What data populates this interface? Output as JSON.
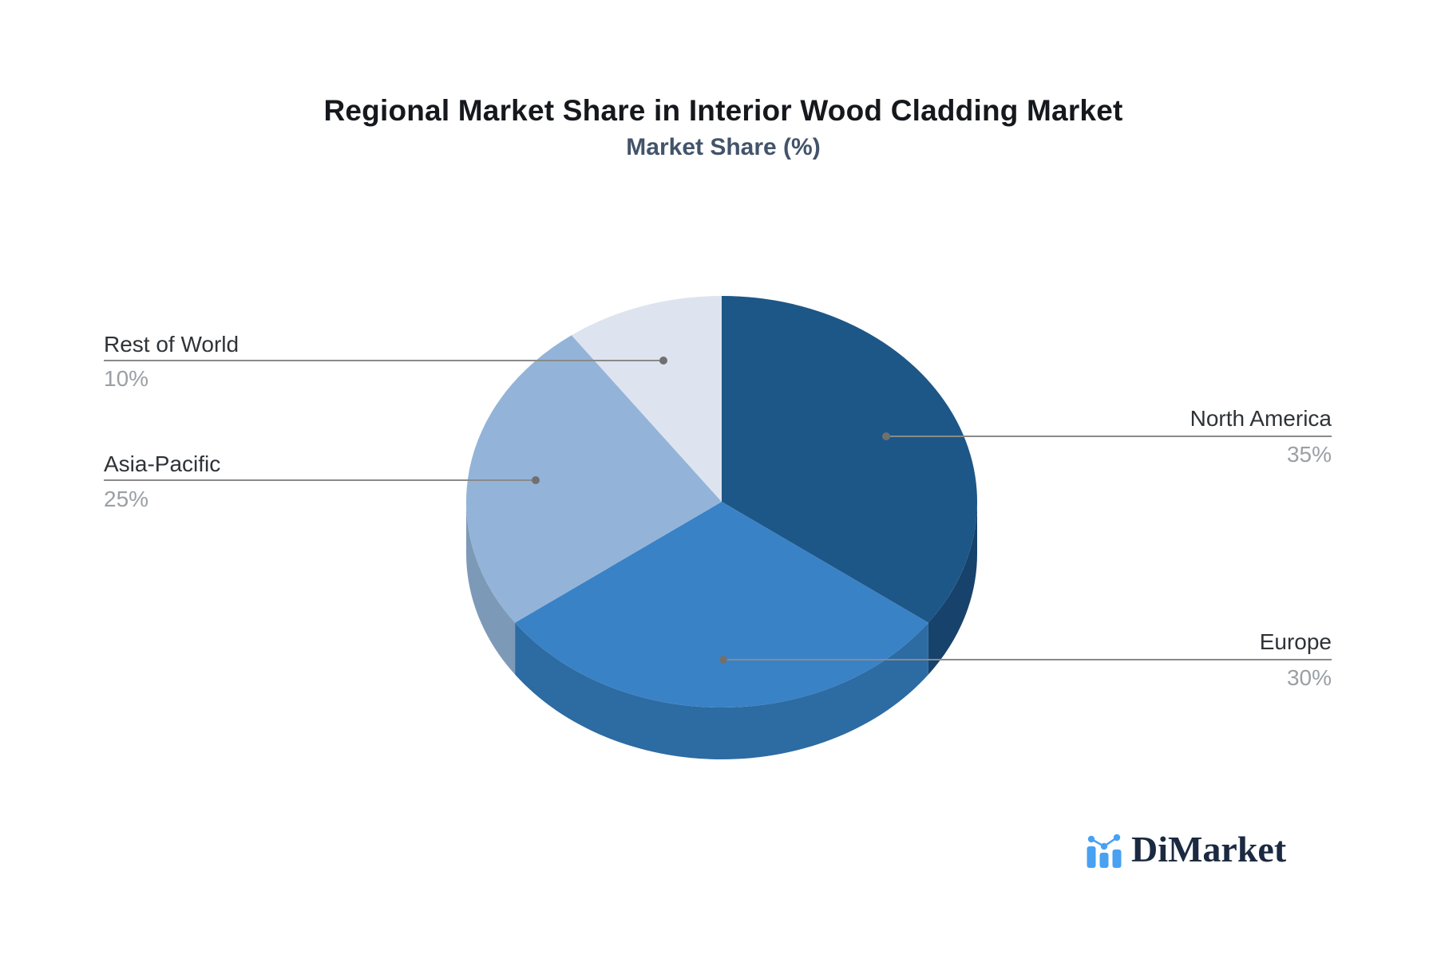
{
  "title": "Regional Market Share in Interior Wood Cladding Market",
  "subtitle": "Market Share (%)",
  "logo": {
    "text": "DiMarket"
  },
  "chart_data": {
    "type": "pie",
    "style": "3d-pie",
    "title": "Regional Market Share in Interior Wood Cladding Market",
    "subtitle": "Market Share (%)",
    "unit": "percent",
    "start_angle": "12-o-clock, clockwise",
    "legend_position": "none",
    "label_style": "callout-lines-with-dots",
    "slices": [
      {
        "label": "North America",
        "value": 35,
        "display": "35%",
        "color": "#1d5787",
        "side_color": "#17426b"
      },
      {
        "label": "Europe",
        "value": 30,
        "display": "30%",
        "color": "#3a82c6",
        "side_color": "#2d6ba3"
      },
      {
        "label": "Asia-Pacific",
        "value": 25,
        "display": "25%",
        "color": "#93b4d8",
        "side_color": "#7d99b8"
      },
      {
        "label": "Rest of World",
        "value": 10,
        "display": "10%",
        "color": "#dde4f0",
        "side_color": "#c9d3e3"
      }
    ],
    "callout": {
      "line_color": "#8a8a8a",
      "dot_color": "#707070",
      "name_color": "#2e3338",
      "value_color": "#9aa0a6"
    },
    "logo_colors": {
      "icon_blue": "#49a1f2",
      "text_navy": "#1b2a41"
    }
  }
}
